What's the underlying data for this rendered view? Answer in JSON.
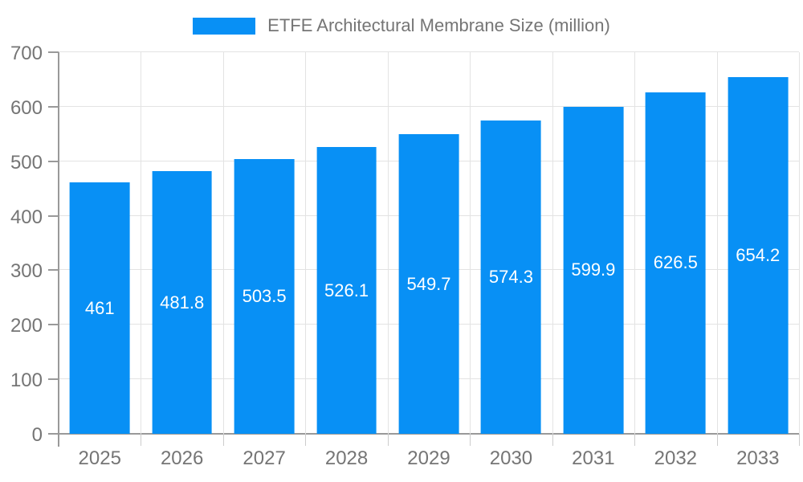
{
  "colors": {
    "bar": "#0890F5",
    "bar_label": "#ffffff",
    "axis_line": "#999999",
    "gridline": "#e3e3e3",
    "boundary_tick": "#cccccc",
    "text": "#757575",
    "background": "#ffffff"
  },
  "legend": {
    "label": "ETFE Architectural Membrane Size (million)",
    "position": "top"
  },
  "chart_data": {
    "type": "bar",
    "title": "ETFE Architectural Membrane Size (million)",
    "categories": [
      "2025",
      "2026",
      "2027",
      "2028",
      "2029",
      "2030",
      "2031",
      "2032",
      "2033"
    ],
    "series": [
      {
        "name": "ETFE Architectural Membrane Size (million)",
        "values": [
          461,
          481.8,
          503.5,
          526.1,
          549.7,
          574.3,
          599.9,
          626.5,
          654.2
        ]
      }
    ],
    "value_labels": [
      "461",
      "481.8",
      "503.5",
      "526.1",
      "549.7",
      "574.3",
      "599.9",
      "626.5",
      "654.2"
    ],
    "xlabel": "",
    "ylabel": "",
    "ylim": [
      0,
      700
    ],
    "yticks": [
      0,
      100,
      200,
      300,
      400,
      500,
      600,
      700
    ],
    "grid": true,
    "legend_position": "top",
    "bar_color": "#0890F5",
    "bar_width_fraction": 0.73
  }
}
